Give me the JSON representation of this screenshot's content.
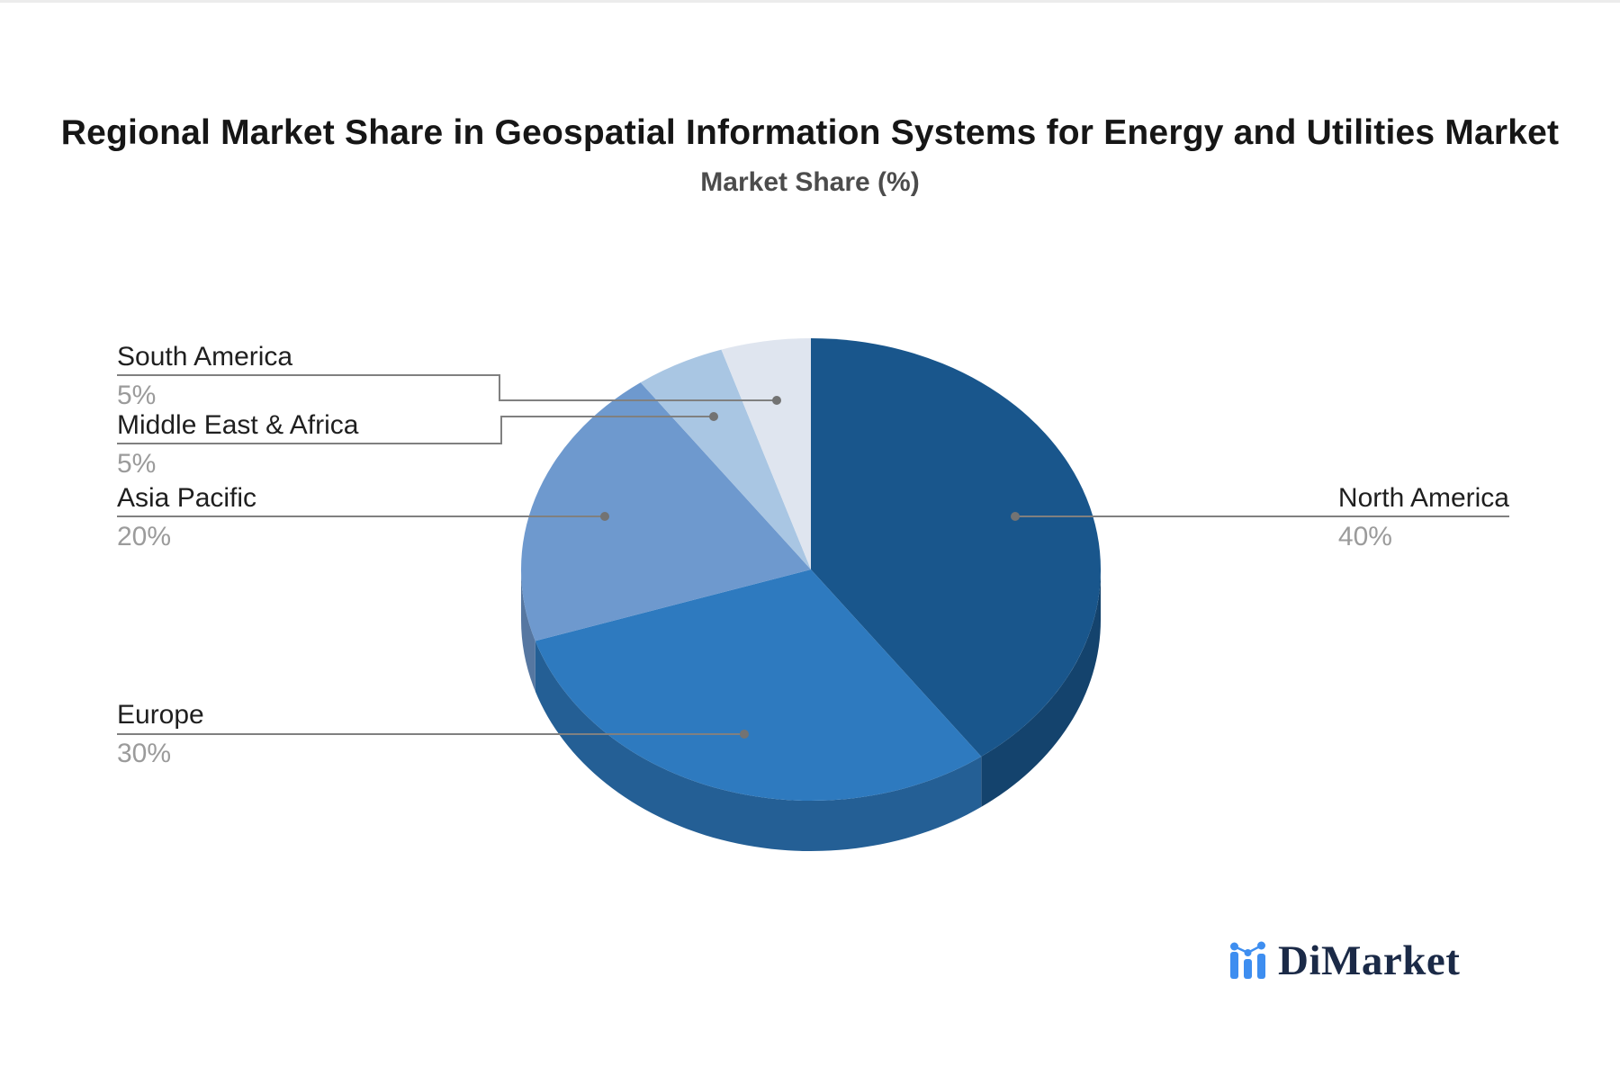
{
  "header": {
    "title": "Regional Market Share in Geospatial Information Systems for Energy and Utilities Market",
    "subtitle": "Market Share (%)"
  },
  "chart_data": {
    "type": "pie",
    "style": "3d-pie",
    "title": "Regional Market Share in Geospatial Information Systems for Energy and Utilities Market",
    "subtitle": "Market Share (%)",
    "unit": "%",
    "start_angle": "12-o-clock",
    "direction": "clockwise",
    "categories": [
      "North America",
      "Europe",
      "Asia Pacific",
      "Middle East & Africa",
      "South America"
    ],
    "values": [
      40,
      30,
      20,
      5,
      5
    ],
    "display_values": [
      "40%",
      "30%",
      "20%",
      "5%",
      "5%"
    ],
    "colors": [
      "#19568C",
      "#2E7ABF",
      "#6E99CE",
      "#A9C6E3",
      "#DFE5EF"
    ],
    "connector_color": "#808080",
    "dot_color": "#737373",
    "legend_position": "callout-labels"
  },
  "logo": {
    "text": "DiMarket",
    "accent_color": "#3E8EF0",
    "text_color": "#1B2A47",
    "icon": "bar-and-line-chart-icon"
  }
}
